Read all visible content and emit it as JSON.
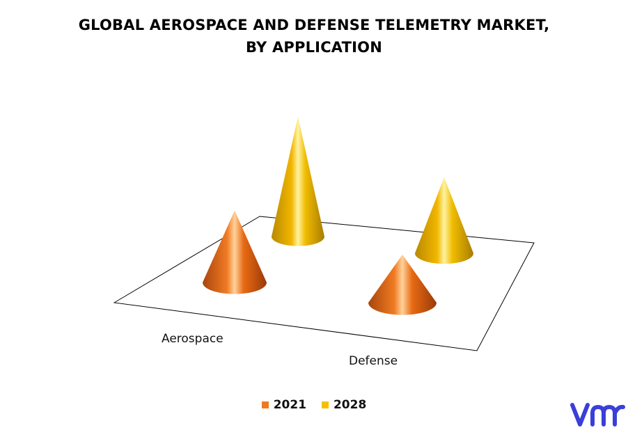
{
  "colors": {
    "2021": "#f07a22",
    "2028": "#f6c000",
    "logo": "#3a3fd8"
  },
  "chart_data": {
    "type": "3d-cone",
    "title_lines": [
      "GLOBAL AEROSPACE AND DEFENSE TELEMETRY  MARKET,",
      "BY APPLICATION"
    ],
    "categories": [
      "Aerospace",
      "Defense"
    ],
    "series": [
      {
        "name": "2021",
        "values": [
          1.8,
          1.2
        ]
      },
      {
        "name": "2028",
        "values": [
          3.0,
          1.9
        ]
      }
    ],
    "legend_position": "bottom",
    "grid": false
  },
  "logo": {
    "icon": "vmr-logo-icon"
  }
}
